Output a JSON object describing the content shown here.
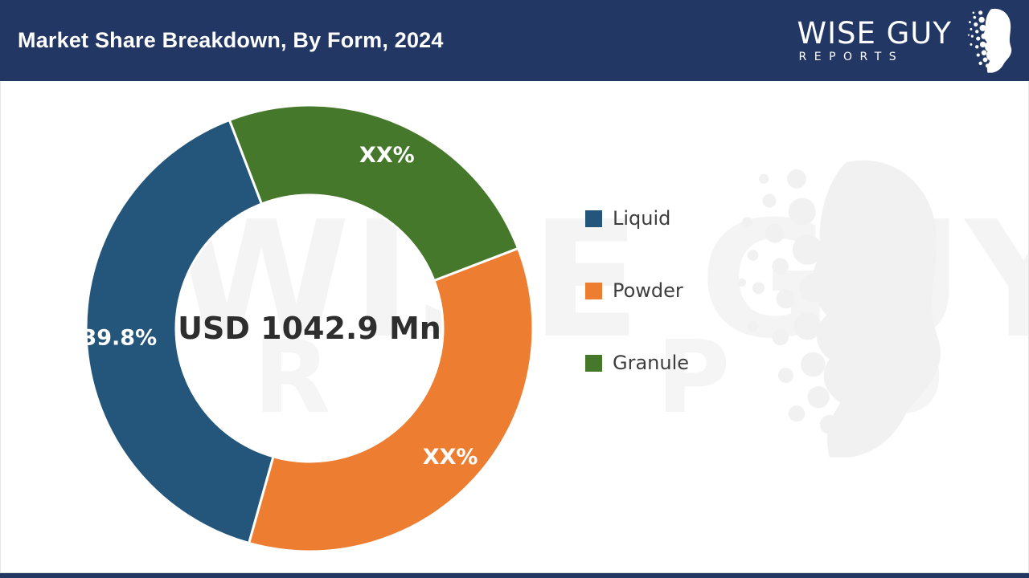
{
  "header": {
    "title": "Market Share Breakdown, By Form, 2024",
    "logo": {
      "line1": "WISE GUY",
      "line2": "REPORTS"
    }
  },
  "watermark": {
    "line1": "WISE GUY",
    "line2": "REPORTS"
  },
  "chart_data": {
    "type": "pie",
    "subtype": "donut",
    "title": "Market Share Breakdown, By Form, 2024",
    "center_label": "USD 1042.9 Mn",
    "start_angle_deg": 111,
    "direction": "ccw",
    "legend_position": "right",
    "slices": [
      {
        "name": "Liquid",
        "value_pct": 39.8,
        "display_label": "39.8%",
        "color": "#24567B"
      },
      {
        "name": "Powder",
        "value_pct": 35.2,
        "display_label": "XX%",
        "color": "#ED7D31"
      },
      {
        "name": "Granule",
        "value_pct": 25.0,
        "display_label": "XX%",
        "color": "#45782B"
      }
    ]
  },
  "colors": {
    "header_bar": "#233765",
    "footer_bar": "#233765",
    "liquid": "#24567B",
    "powder": "#ED7D31",
    "granule": "#45782B",
    "center_text": "#2e2e2e",
    "watermark": "#f4f4f4"
  }
}
